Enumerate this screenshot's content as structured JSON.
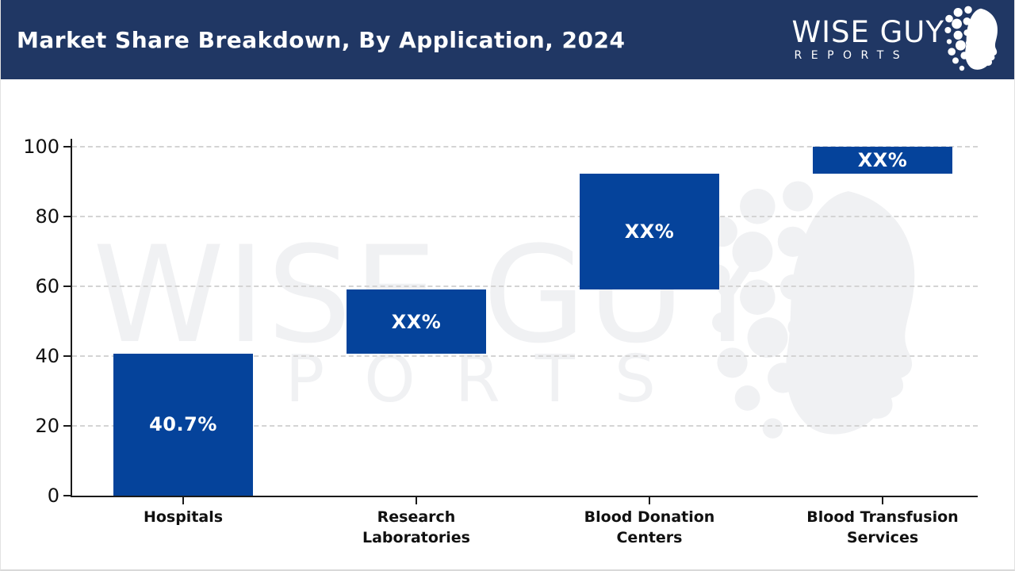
{
  "header": {
    "title": "Market Share Breakdown, By Application, 2024",
    "bg_color": "#203764",
    "logo": {
      "line1": "WISE GUY",
      "line2": "REPORTS"
    }
  },
  "watermark": {
    "line1": "WISE GUY",
    "line2": "REPORTS"
  },
  "chart_data": {
    "type": "bar",
    "subtype": "waterfall",
    "title": "Market Share Breakdown, By Application, 2024",
    "categories": [
      "Hospitals",
      "Research Laboratories",
      "Blood Donation Centers",
      "Blood Transfusion Services"
    ],
    "category_label_lines": [
      [
        "Hospitals"
      ],
      [
        "Research",
        "Laboratories"
      ],
      [
        "Blood Donation",
        "Centers"
      ],
      [
        "Blood Transfusion",
        "Services"
      ]
    ],
    "segments": [
      {
        "category": "Hospitals",
        "start": 0,
        "end": 40.7,
        "value": 40.7,
        "label": "40.7%"
      },
      {
        "category": "Research Laboratories",
        "start": 40.7,
        "end": 59.0,
        "value": 18.3,
        "label": "XX%"
      },
      {
        "category": "Blood Donation Centers",
        "start": 59.0,
        "end": 92.3,
        "value": 33.3,
        "label": "XX%"
      },
      {
        "category": "Blood Transfusion Services",
        "start": 92.3,
        "end": 100.0,
        "value": 7.7,
        "label": "XX%"
      }
    ],
    "yticks": [
      0,
      20,
      40,
      60,
      80,
      100
    ],
    "ylim": [
      0,
      102
    ],
    "bar_color": "#05439b",
    "grid": "horizontal-dashed",
    "gridline_color": "#d4d4d4",
    "xlabel": "",
    "ylabel": ""
  }
}
